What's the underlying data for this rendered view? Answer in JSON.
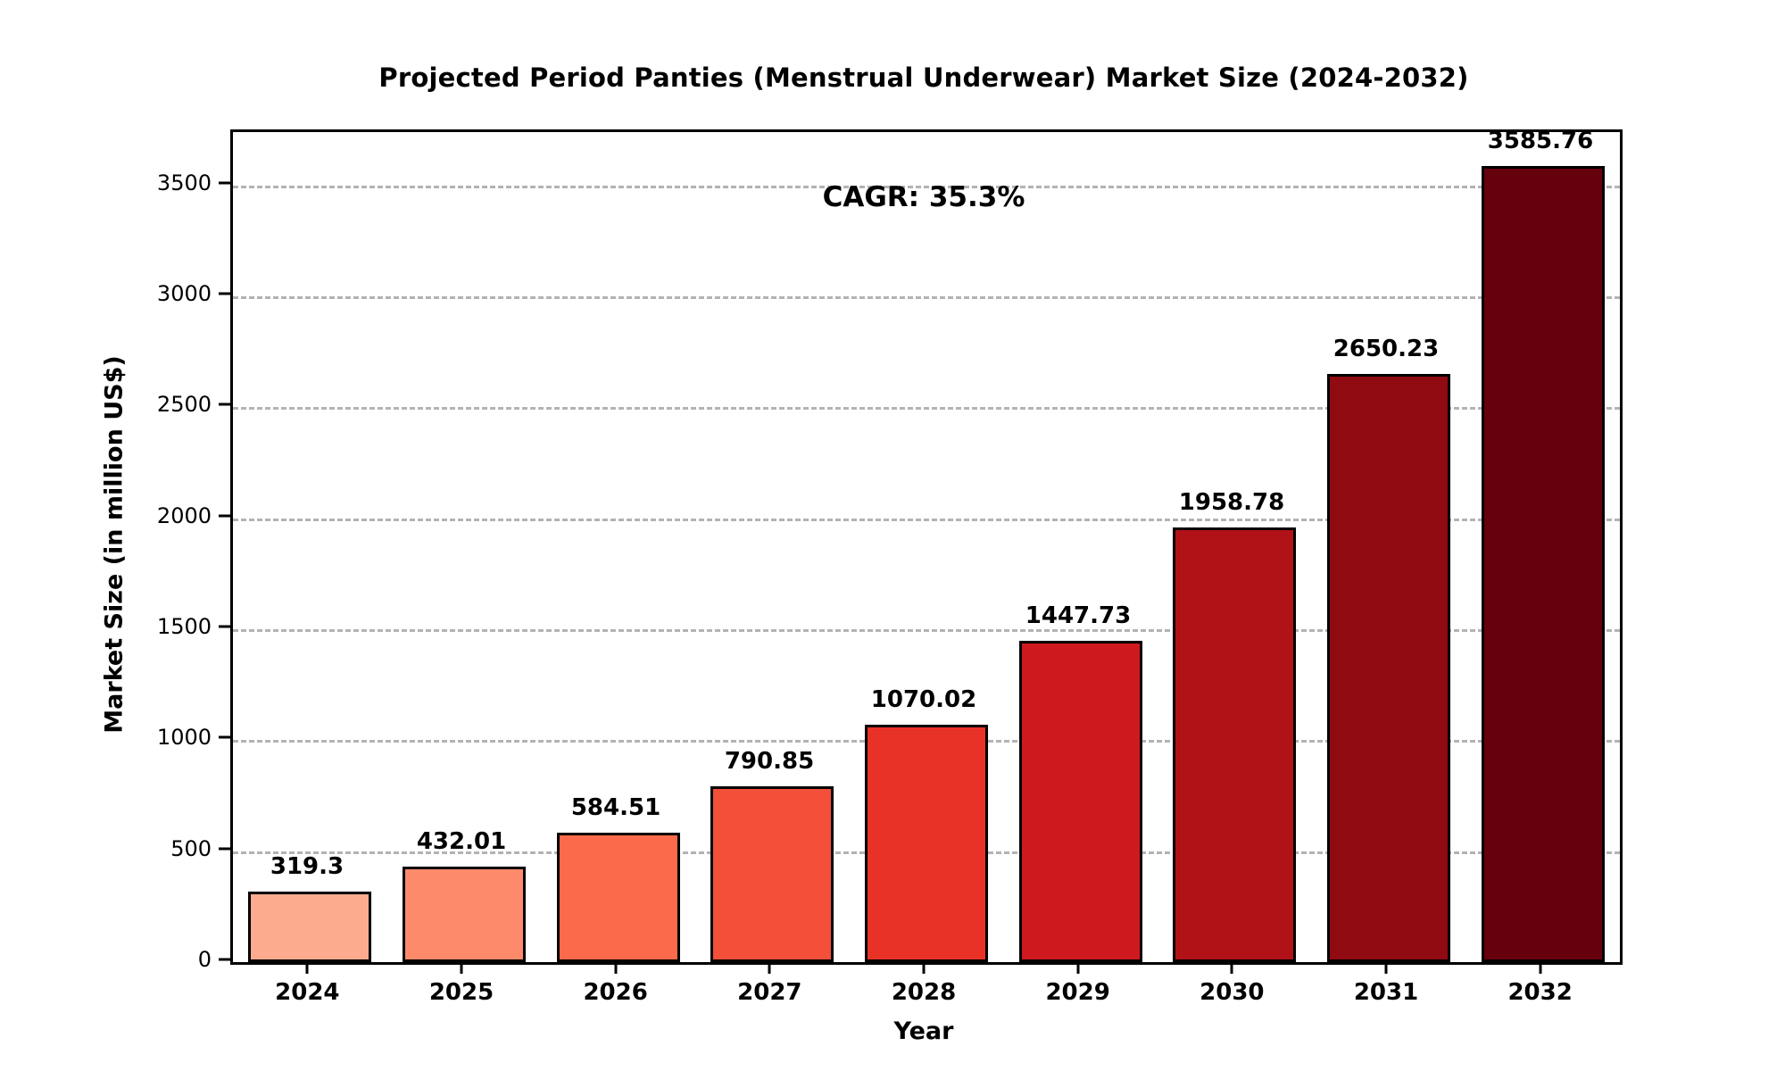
{
  "chart_data": {
    "type": "bar",
    "title": "Projected Period Panties (Menstrual Underwear) Market Size (2024-2032)",
    "annotation": "CAGR: 35.3%",
    "xlabel": "Year",
    "ylabel": "Market Size (in million US$)",
    "categories": [
      "2024",
      "2025",
      "2026",
      "2027",
      "2028",
      "2029",
      "2030",
      "2031",
      "2032"
    ],
    "values": [
      319.3,
      432.01,
      584.51,
      790.85,
      1070.02,
      1447.73,
      1958.78,
      2650.23,
      3585.76
    ],
    "value_labels": [
      "319.3",
      "432.01",
      "584.51",
      "790.85",
      "1070.02",
      "1447.73",
      "1958.78",
      "2650.23",
      "3585.76"
    ],
    "bar_colors": [
      "#fcab8e",
      "#fc8a6b",
      "#fb6b4b",
      "#f44f38",
      "#e93227",
      "#ce1a1e",
      "#b11218",
      "#900a12",
      "#67000d"
    ],
    "bar_edge_color": "#000000",
    "yticks": [
      0,
      500,
      1000,
      1500,
      2000,
      2500,
      3000,
      3500
    ],
    "ylim": [
      0,
      3740
    ],
    "grid": true,
    "gridline_color": "#b3b3b3",
    "gridline_style": "dashed",
    "legend": false,
    "background_color": "#ffffff"
  }
}
